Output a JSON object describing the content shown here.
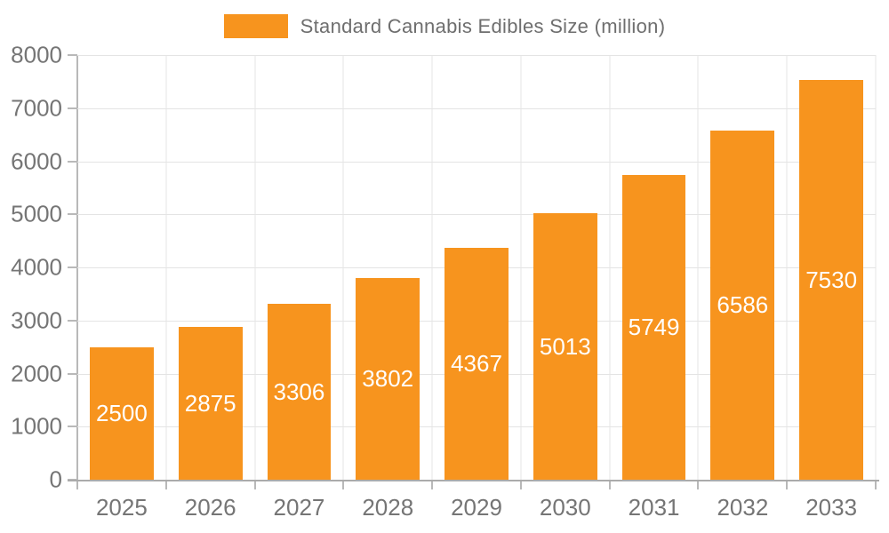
{
  "legend": {
    "label": "Standard Cannabis Edibles Size (million)"
  },
  "colors": {
    "bar": "#F7941E",
    "bar_label": "#FFFFFF",
    "axis_text": "#757575",
    "grid": "#E4E4E4",
    "axis_line": "#B9B9B9"
  },
  "chart_data": {
    "type": "bar",
    "title": "Standard Cannabis Edibles Size (million)",
    "categories": [
      "2025",
      "2026",
      "2027",
      "2028",
      "2029",
      "2030",
      "2031",
      "2032",
      "2033"
    ],
    "values": [
      2500,
      2875,
      3306,
      3802,
      4367,
      5013,
      5749,
      6586,
      7530
    ],
    "xlabel": "",
    "ylabel": "",
    "ylim": [
      0,
      8000
    ],
    "yticks": [
      0,
      1000,
      2000,
      3000,
      4000,
      5000,
      6000,
      7000,
      8000
    ],
    "grid": true,
    "legend_position": "top",
    "value_labels": "inside-center"
  }
}
